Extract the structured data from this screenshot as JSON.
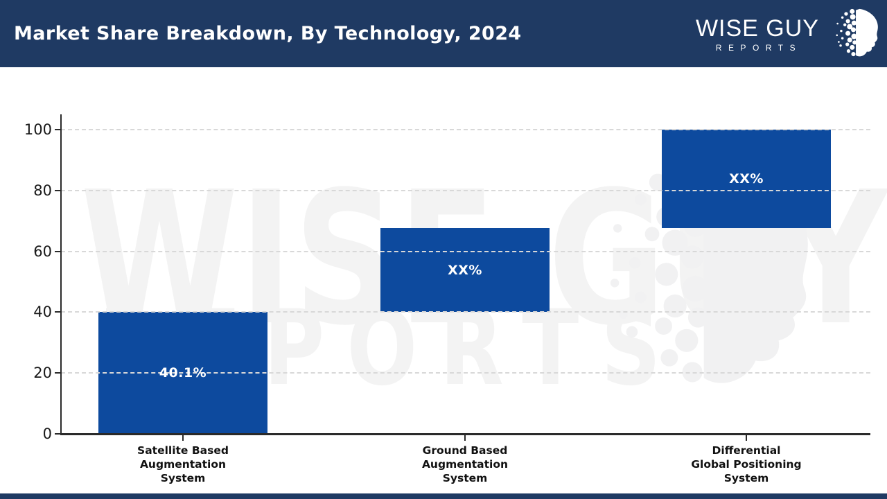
{
  "header": {
    "title": "Market Share Breakdown, By Technology, 2024",
    "logo": {
      "line1": "WISE GUY",
      "line2": "REPORTS"
    }
  },
  "watermark": {
    "line1": "WISE GUY",
    "line2": "REPORTS"
  },
  "colors": {
    "header_bg": "#1f3a63",
    "bar": "#0d4a9e",
    "grid": "#d8d8d8",
    "axis": "#2a2a2a",
    "bar_label_text": "#ffffff",
    "watermark": "#f3f3f3"
  },
  "chart_data": {
    "type": "bar",
    "subtype": "floating-waterfall",
    "title": "Market Share Breakdown, By Technology, 2024",
    "categories": [
      "Satellite Based\nAugmentation\nSystem",
      "Ground Based\nAugmentation\nSystem",
      "Differential\nGlobal Positioning\nSystem"
    ],
    "segments": [
      {
        "start": 0,
        "end": 40.1,
        "label": "40.1%"
      },
      {
        "start": 40.1,
        "end": 67.6,
        "label": "XX%"
      },
      {
        "start": 67.6,
        "end": 100,
        "label": "XX%"
      }
    ],
    "yticks": [
      0,
      20,
      40,
      60,
      80,
      100
    ],
    "ylim": [
      0,
      100
    ],
    "xlabel": "",
    "ylabel": "",
    "grid": "horizontal-dashed",
    "legend": "none"
  }
}
